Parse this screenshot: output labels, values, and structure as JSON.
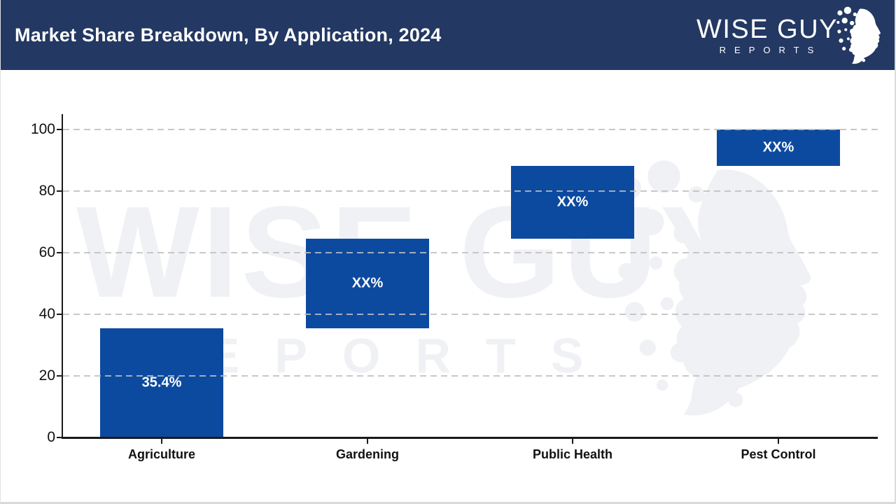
{
  "header": {
    "title": "Market Share Breakdown, By Application, 2024",
    "logo": {
      "line1": "WISE GUY",
      "line2": "REPORTS"
    }
  },
  "watermark": {
    "line1": "WISE GUY",
    "line2": "REPORTS"
  },
  "chart_data": {
    "type": "bar",
    "subtype": "waterfall-stacked-breakdown",
    "title": "Market Share Breakdown, By Application, 2024",
    "categories": [
      "Agriculture",
      "Gardening",
      "Public Health",
      "Pest Control"
    ],
    "segments": [
      {
        "category": "Agriculture",
        "start": 0,
        "end": 35.4,
        "label": "35.4%"
      },
      {
        "category": "Gardening",
        "start": 35.4,
        "end": 64.6,
        "label": "XX%"
      },
      {
        "category": "Public Health",
        "start": 64.6,
        "end": 88.2,
        "label": "XX%"
      },
      {
        "category": "Pest Control",
        "start": 88.2,
        "end": 100,
        "label": "XX%"
      }
    ],
    "yticks": [
      0,
      20,
      40,
      60,
      80,
      100
    ],
    "ylim": [
      0,
      100
    ],
    "xlabel": "",
    "ylabel": "",
    "grid": "horizontal-dashed",
    "legend": "none",
    "colors": {
      "bar": "#0c4aa0",
      "header_bg": "#233862",
      "grid": "#c9c9c9",
      "axis": "#1a1a1a",
      "watermark": "#f0f1f4",
      "label_on_bar": "#ffffff"
    }
  }
}
